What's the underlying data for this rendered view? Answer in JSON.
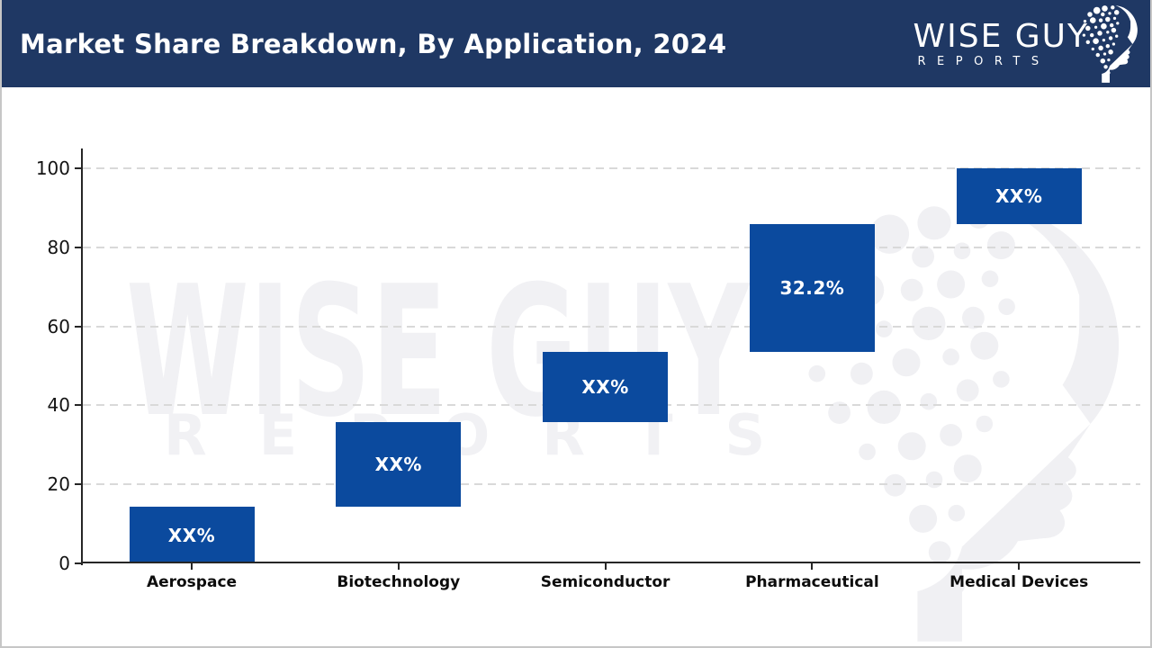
{
  "header": {
    "title": "Market Share Breakdown, By Application, 2024",
    "bg_color": "#1f3864",
    "logo": {
      "line1": "WISE GUY",
      "line2": "REPORTS"
    }
  },
  "watermark": {
    "line1": "WISE GUY",
    "line2": "REPORTS"
  },
  "chart_data": {
    "type": "bar",
    "subtype": "waterfall",
    "title": "Market Share Breakdown, By Application, 2024",
    "categories": [
      "Aerospace",
      "Biotechnology",
      "Semiconductor",
      "Pharmaceutical",
      "Medical Devices"
    ],
    "segments": [
      {
        "category": "Aerospace",
        "start": 0,
        "end": 14.3,
        "value": 14.3,
        "label": "XX%"
      },
      {
        "category": "Biotechnology",
        "start": 14.3,
        "end": 35.8,
        "value": 21.5,
        "label": "XX%"
      },
      {
        "category": "Semiconductor",
        "start": 35.8,
        "end": 53.6,
        "value": 17.8,
        "label": "XX%"
      },
      {
        "category": "Pharmaceutical",
        "start": 53.6,
        "end": 85.8,
        "value": 32.2,
        "label": "32.2%"
      },
      {
        "category": "Medical Devices",
        "start": 85.8,
        "end": 100,
        "value": 14.2,
        "label": "XX%"
      }
    ],
    "y_ticks": [
      0,
      20,
      40,
      60,
      80,
      100
    ],
    "ylim": [
      0,
      100
    ],
    "grid": true,
    "legend": false,
    "bar_color": "#0b4a9e",
    "grid_color": "#d9d9d9",
    "axis_color": "#262626",
    "label_color": "#ffffff"
  }
}
